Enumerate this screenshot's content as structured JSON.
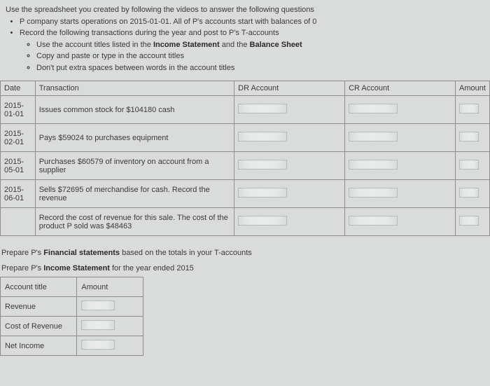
{
  "instructions": {
    "title": "Use the spreadsheet you created by following the videos to answer the following questions",
    "bullets": [
      "P company starts operations on 2015-01-01. All of P's accounts start with balances of 0",
      "Record the following transactions during the year and post to P's T-accounts"
    ],
    "sub_bullets": [
      {
        "pre": "Use the account titles listed in the ",
        "b1": "Income Statement",
        "mid": " and the ",
        "b2": "Balance Sheet"
      },
      {
        "text": "Copy and paste or type in the account titles"
      },
      {
        "text": "Don't put extra spaces between words in the account titles"
      }
    ]
  },
  "main_table": {
    "headers": {
      "date": "Date",
      "transaction": "Transaction",
      "dr": "DR Account",
      "cr": "CR Account",
      "amount": "Amount"
    },
    "rows": [
      {
        "date": "2015-01-01",
        "transaction": "Issues common stock for $104180 cash"
      },
      {
        "date": "2015-02-01",
        "transaction": "Pays $59024 to purchases equipment"
      },
      {
        "date": "2015-05-01",
        "transaction": "Purchases $60579 of inventory on account from a supplier"
      },
      {
        "date": "2015-06-01",
        "transaction": "Sells $72695 of merchandise for cash. Record the revenue"
      },
      {
        "date": "",
        "transaction": "Record the cost of revenue for this sale. The cost of the product P sold was $48463"
      }
    ]
  },
  "statements_heading": {
    "pre": "Prepare P's ",
    "b": "Financial statements",
    "post": " based on the totals in your T-accounts"
  },
  "income_heading": {
    "pre": "Prepare P's ",
    "b": "Income Statement",
    "post": " for the year ended 2015"
  },
  "income_table": {
    "headers": {
      "account": "Account title",
      "amount": "Amount"
    },
    "rows": [
      "Revenue",
      "Cost of Revenue",
      "Net Income"
    ]
  },
  "colors": {
    "background": "#d9dcdb",
    "border": "#8d8d8d",
    "text": "#3a3a3a"
  },
  "font": {
    "family": "Arial",
    "size_pt": 11
  }
}
